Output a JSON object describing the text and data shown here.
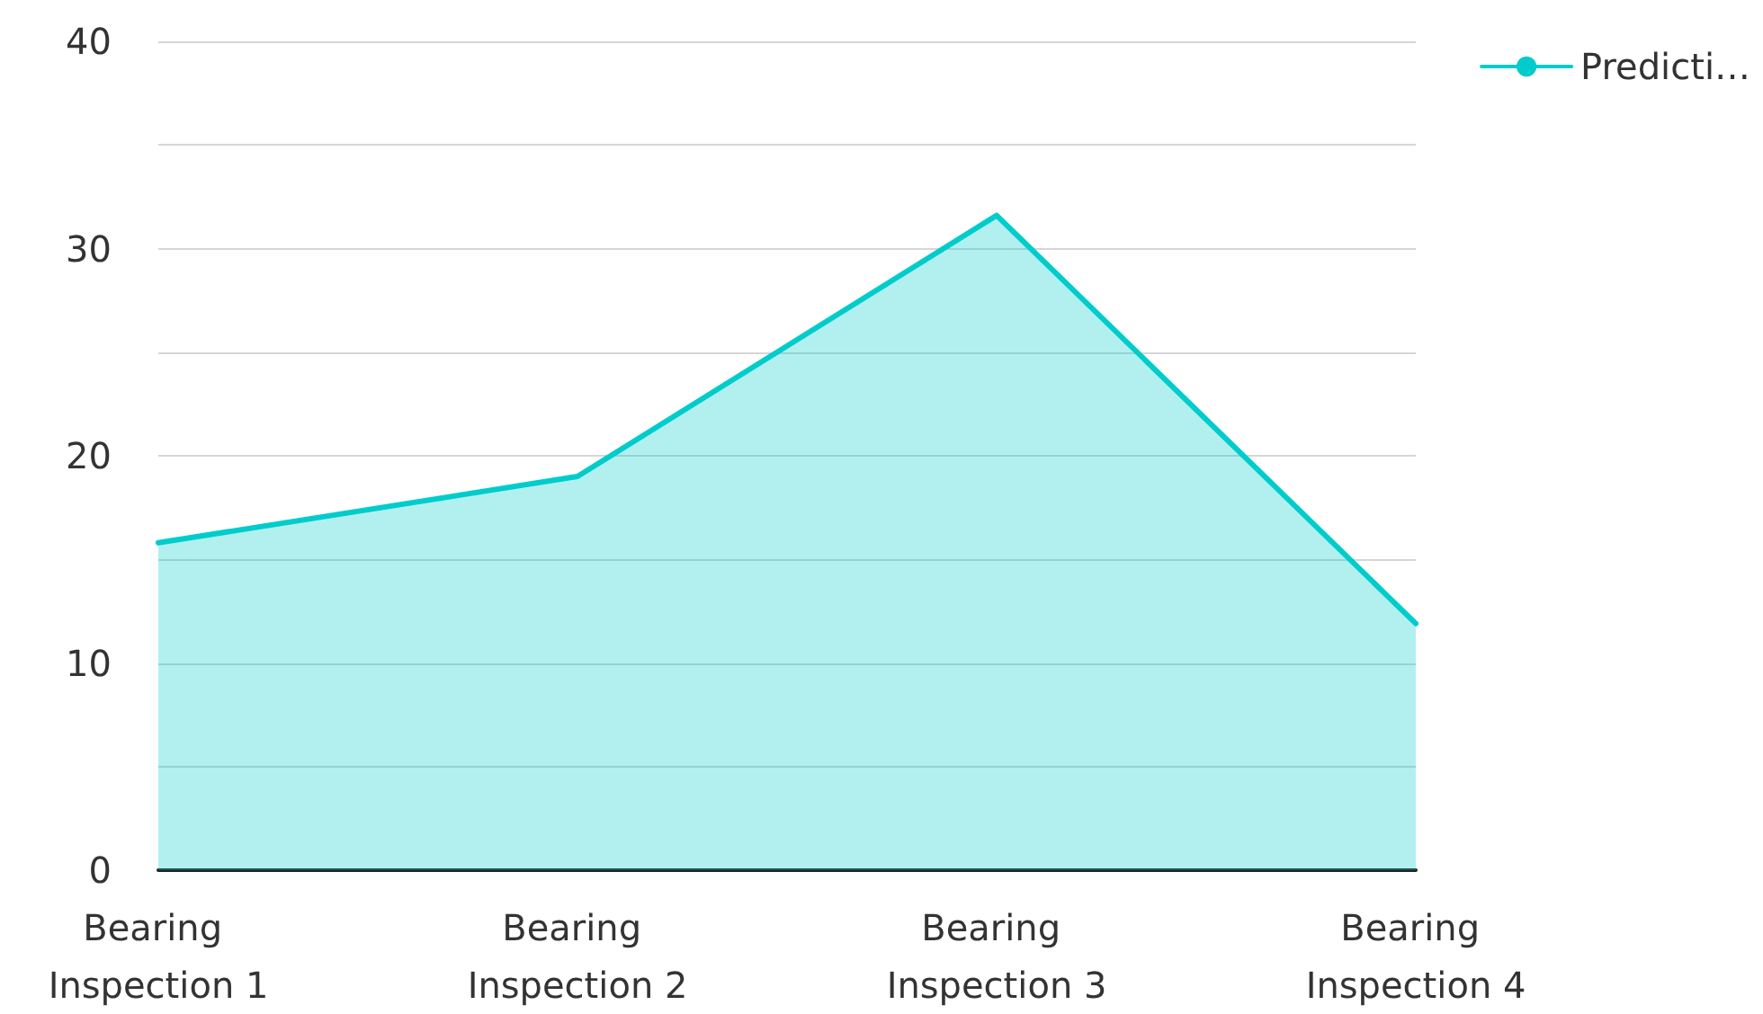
{
  "chart_data": {
    "type": "area",
    "categories": [
      "Bearing Inspection 1",
      "Bearing Inspection 2",
      "Bearing Inspection 3",
      "Bearing Inspection 4"
    ],
    "series": [
      {
        "name": "Predicti…",
        "color": "#00cccc",
        "values": [
          15.8,
          19.0,
          31.6,
          11.9
        ]
      }
    ],
    "ylim": [
      0,
      40
    ],
    "yticks": [
      0,
      {
        "value": 5,
        "label": null
      },
      10,
      {
        "value": 15,
        "label": null
      },
      20,
      {
        "value": 25,
        "label": null
      },
      30,
      {
        "value": 35,
        "label": null
      },
      40
    ],
    "grid": "y",
    "legend": "top right",
    "marker": "none",
    "line_style": "solid"
  }
}
